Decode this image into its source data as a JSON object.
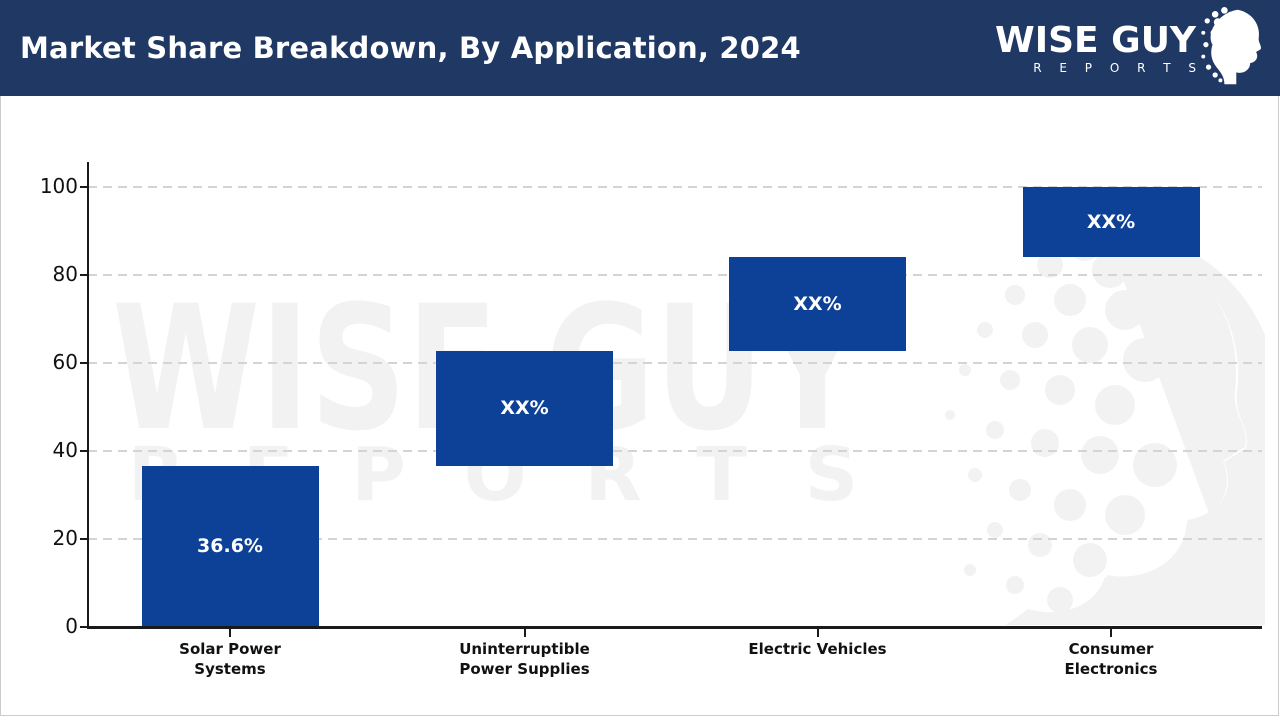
{
  "header": {
    "title": "Market Share Breakdown, By Application, 2024",
    "logo": {
      "name": "WISE GUY",
      "sub": "R E P O R T S"
    }
  },
  "watermark": {
    "line1": "WISE GUY",
    "line2": "REPORTS"
  },
  "colors": {
    "header_bg": "#203864",
    "bar_blue": "#0c4197",
    "grid": "#d4d4d4",
    "axis": "#1a1a1a",
    "watermark": "#f2f2f2",
    "bar_label": "#ffffff",
    "frame_border": "#cccccc"
  },
  "chart_data": {
    "type": "bar",
    "subtype": "waterfall",
    "title": "Market Share Breakdown, By Application, 2024",
    "categories": [
      "Solar Power Systems",
      "Uninterruptible Power Supplies",
      "Electric Vehicles",
      "Consumer Electronics"
    ],
    "category_label_lines": [
      [
        "Solar Power",
        "Systems"
      ],
      [
        "Uninterruptible",
        "Power Supplies"
      ],
      [
        "Electric Vehicles"
      ],
      [
        "Consumer",
        "Electronics"
      ]
    ],
    "bars": [
      {
        "category": "Solar Power Systems",
        "start": 0,
        "end": 36.6,
        "label": "36.6%"
      },
      {
        "category": "Uninterruptible Power Supplies",
        "start": 36.6,
        "end": 62.8,
        "label": "XX%"
      },
      {
        "category": "Electric Vehicles",
        "start": 62.8,
        "end": 84.1,
        "label": "XX%"
      },
      {
        "category": "Consumer Electronics",
        "start": 84.1,
        "end": 100,
        "label": "XX%"
      }
    ],
    "xlabel": "",
    "ylabel": "",
    "ylim": [
      0,
      105
    ],
    "yticks": [
      0,
      20,
      40,
      60,
      80,
      100
    ],
    "grid": "horizontal-dashed",
    "legend": "none"
  }
}
